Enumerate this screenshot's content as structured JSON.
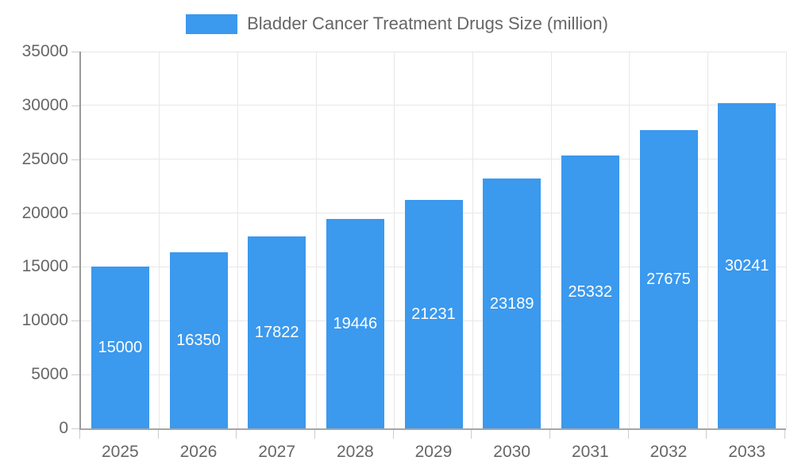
{
  "chart_data": {
    "type": "bar",
    "title": "Bladder Cancer Treatment Drugs Size (million)",
    "categories": [
      "2025",
      "2026",
      "2027",
      "2028",
      "2029",
      "2030",
      "2031",
      "2032",
      "2033"
    ],
    "values": [
      15000,
      16350,
      17822,
      19446,
      21231,
      23189,
      25332,
      27675,
      30241
    ],
    "xlabel": "",
    "ylabel": "",
    "ylim": [
      0,
      35000
    ],
    "yticks": [
      0,
      5000,
      10000,
      15000,
      20000,
      25000,
      30000,
      35000
    ],
    "grid": true,
    "legend_position": "top",
    "bar_color": "#3b99ee",
    "value_label_color": "#ffffff",
    "axis_text_color": "#666666",
    "gridline_color": "#e7e7e7"
  }
}
